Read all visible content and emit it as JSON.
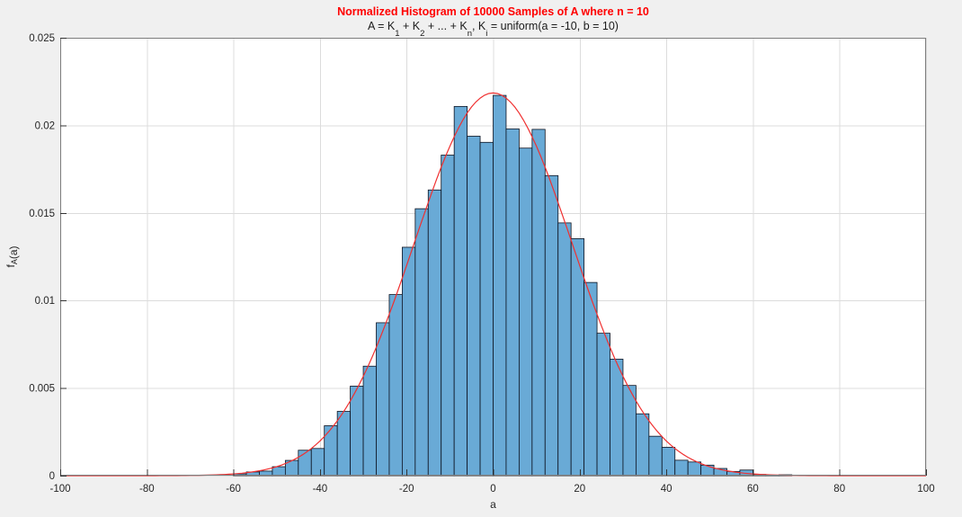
{
  "figure": {
    "title": "Normalized Histogram of 10000 Samples of A where n = 10",
    "subtitle_segments": [
      {
        "t": "A = K"
      },
      {
        "t": "1",
        "sub": true
      },
      {
        "t": " + K"
      },
      {
        "t": "2",
        "sub": true
      },
      {
        "t": " + ... + K"
      },
      {
        "t": "n",
        "sub": true
      },
      {
        "t": ", K"
      },
      {
        "t": "i",
        "sub": true
      },
      {
        "t": " = uniform(a = -10, b = 10)"
      }
    ],
    "colors": {
      "title": "#ff0000",
      "figure_bg": "#f0f0f0",
      "plot_bg": "#ffffff",
      "grid": "#dcdcdc",
      "box": "#7d7d7d",
      "tick": "#333333",
      "tick_text": "#262626",
      "bar_fill": "#69aad6",
      "bar_edge": "#0c1220",
      "curve": "#f03030"
    }
  },
  "chart_data": {
    "type": "bar",
    "subtype": "normalized-histogram-with-normal-pdf-overlay",
    "title": "Normalized Histogram of 10000 Samples of A where n = 10",
    "subtitle": "A = K_1 + K_2 + ... + K_n, K_i = uniform(a = -10, b = 10)",
    "xlabel": "a",
    "ylabel": "f_A(a)",
    "ylabel_segments": [
      {
        "t": "f"
      },
      {
        "t": "A",
        "sub": true
      },
      {
        "t": "(a)"
      }
    ],
    "xlim": [
      -100,
      100
    ],
    "ylim": [
      0,
      0.025
    ],
    "grid": true,
    "xticks": [
      -100,
      -80,
      -60,
      -40,
      -20,
      0,
      20,
      40,
      60,
      80,
      100
    ],
    "xtick_labels": [
      "-100",
      "-80",
      "-60",
      "-40",
      "-20",
      "0",
      "20",
      "40",
      "60",
      "80",
      "100"
    ],
    "yticks": [
      0,
      0.005,
      0.01,
      0.015,
      0.02,
      0.025
    ],
    "ytick_labels": [
      "0",
      "0.005",
      "0.01",
      "0.015",
      "0.02",
      "0.025"
    ],
    "bins": {
      "bin_width": 3,
      "left_edges": [
        -60,
        -57,
        -54,
        -51,
        -48,
        -45,
        -42,
        -39,
        -36,
        -33,
        -30,
        -27,
        -24,
        -21,
        -18,
        -15,
        -12,
        -9,
        -6,
        -3,
        0,
        3,
        6,
        9,
        12,
        15,
        18,
        21,
        24,
        27,
        30,
        33,
        36,
        39,
        42,
        45,
        48,
        51,
        54,
        57,
        60,
        63,
        66
      ],
      "heights": [
        0.0001,
        0.00021,
        0.00026,
        0.00051,
        0.00087,
        0.00145,
        0.00155,
        0.00285,
        0.00367,
        0.00511,
        0.00625,
        0.00873,
        0.01034,
        0.01304,
        0.01524,
        0.01631,
        0.0183,
        0.02108,
        0.01938,
        0.01903,
        0.02171,
        0.0198,
        0.0187,
        0.01977,
        0.01713,
        0.01443,
        0.01353,
        0.01103,
        0.00813,
        0.00665,
        0.00515,
        0.00353,
        0.00225,
        0.00162,
        0.00088,
        0.00078,
        0.0006,
        0.00041,
        0.00024,
        0.00032,
        7e-05,
        3e-05,
        5e-05
      ]
    },
    "curve": {
      "type": "normal-pdf",
      "mu": 0,
      "sigma": 18.26,
      "peak": 0.02185
    }
  }
}
